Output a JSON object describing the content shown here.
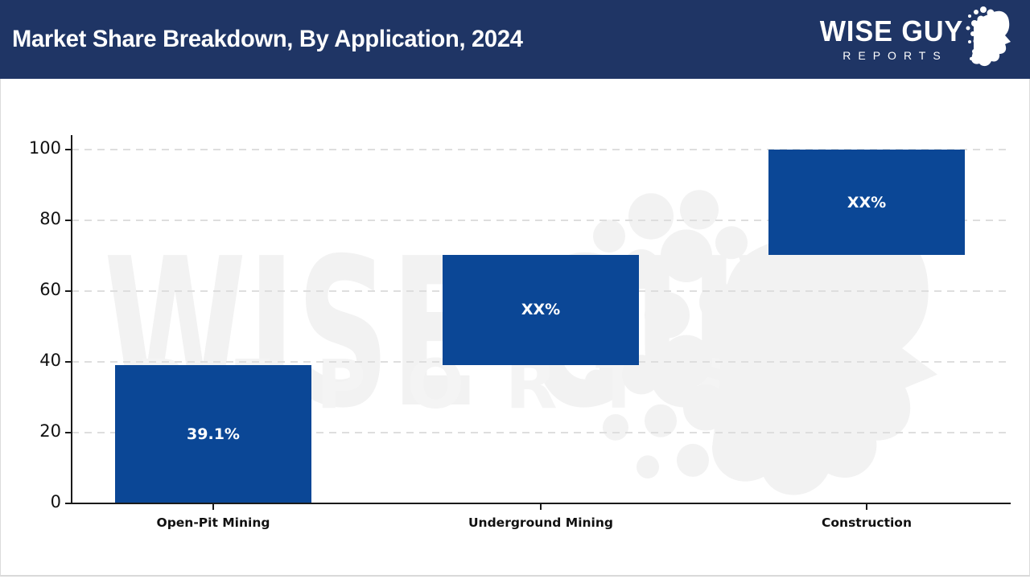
{
  "header": {
    "title": "Market Share Breakdown, By Application, 2024",
    "logo": {
      "wordmark": "WISE GUY",
      "subtext": "REPORTS"
    }
  },
  "watermark": {
    "line1": "WISE GUY",
    "line2": "REPORTS"
  },
  "chart_data": {
    "type": "bar",
    "variant": "floating-range-waterfall",
    "title": "Market Share Breakdown, By Application, 2024",
    "categories": [
      "Open-Pit Mining",
      "Underground Mining",
      "Construction"
    ],
    "bars": [
      {
        "category": "Open-Pit Mining",
        "label": "39.1%",
        "start": 0,
        "end": 39.1
      },
      {
        "category": "Underground Mining",
        "label": "XX%",
        "start": 39.1,
        "end": 70.2
      },
      {
        "category": "Construction",
        "label": "XX%",
        "start": 70.1,
        "end": 100
      }
    ],
    "xlabel": "",
    "ylabel": "",
    "ylim": [
      0,
      100
    ],
    "yticks": [
      0,
      20,
      40,
      60,
      80,
      100
    ],
    "grid": "dashed-horizontal",
    "legend": "none",
    "bar_color": "#0b4796",
    "label_color": "#ffffff",
    "header_color": "#1f3565",
    "gridline_color": "#dedede",
    "axis_color": "#1a1a1a"
  }
}
